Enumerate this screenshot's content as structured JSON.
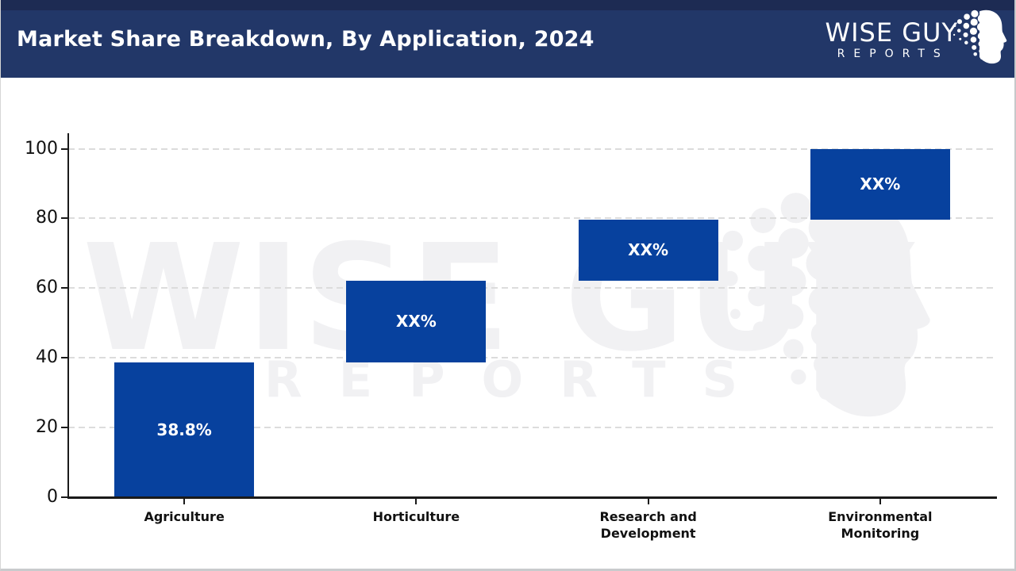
{
  "header": {
    "title": "Market Share Breakdown, By Application, 2024",
    "bg_color": "#223768",
    "logo": {
      "name": "WISE GUY",
      "sub": "REPORTS"
    }
  },
  "watermark": {
    "name": "WISE GUY",
    "sub": "REPORTS"
  },
  "chart_data": {
    "type": "bar",
    "variant": "waterfall",
    "title": "Market Share Breakdown, By Application, 2024",
    "categories": [
      "Agriculture",
      "Horticulture",
      "Research and\nDevelopment",
      "Environmental\nMonitoring"
    ],
    "segments": [
      {
        "start": 0,
        "end": 38.8,
        "label": "38.8%"
      },
      {
        "start": 38.8,
        "end": 62.2,
        "label": "XX%"
      },
      {
        "start": 62.2,
        "end": 79.7,
        "label": "XX%"
      },
      {
        "start": 79.7,
        "end": 100,
        "label": "XX%"
      }
    ],
    "yticks": [
      0,
      20,
      40,
      60,
      80,
      100
    ],
    "ylim": [
      0,
      104
    ],
    "bar_color": "#07419e",
    "bar_label_color": "#ffffff",
    "grid": {
      "show": true,
      "style": "dashed",
      "color": "#dcdcdc"
    },
    "axis_color": "#1a1a1a",
    "legend": "none"
  }
}
